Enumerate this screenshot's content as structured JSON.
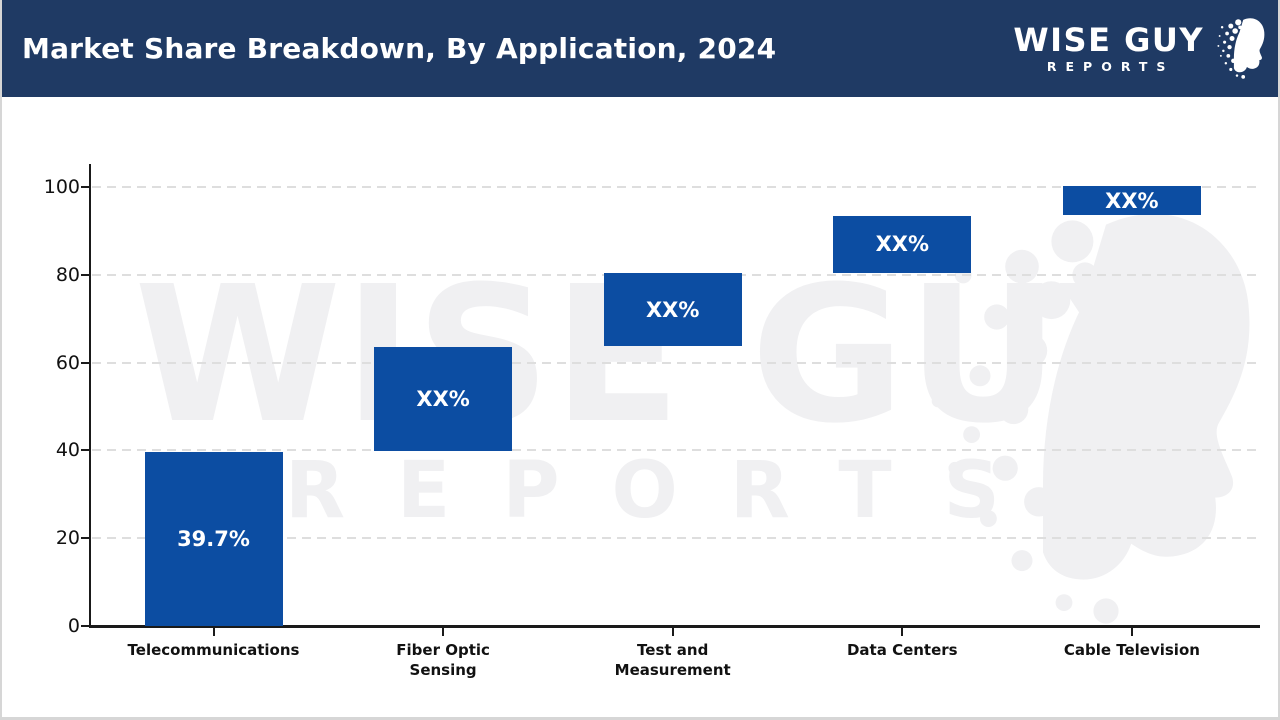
{
  "header": {
    "title": "Market Share Breakdown, By Application, 2024",
    "background_color": "#1F3A64",
    "logo": {
      "wordmark": "WISE GUY",
      "subtext": "REPORTS"
    }
  },
  "watermark": {
    "line1": "WISE GUY",
    "line2": "REPORTS"
  },
  "chart_data": {
    "type": "bar",
    "variant": "waterfall",
    "title": "Market Share Breakdown, By Application, 2024",
    "categories": [
      "Telecommunications",
      "Fiber Optic Sensing",
      "Test and Measurement",
      "Data Centers",
      "Cable Television"
    ],
    "category_label_lines": [
      [
        "Telecommunications"
      ],
      [
        "Fiber Optic",
        "Sensing"
      ],
      [
        "Test and",
        "Measurement"
      ],
      [
        "Data Centers"
      ],
      [
        "Cable Television"
      ]
    ],
    "segments": [
      {
        "category": "Telecommunications",
        "start": 0,
        "end": 39.7,
        "label": "39.7%"
      },
      {
        "category": "Fiber Optic Sensing",
        "start": 39.9,
        "end": 63.6,
        "label": "XX%"
      },
      {
        "category": "Test and Measurement",
        "start": 63.7,
        "end": 80.3,
        "label": "XX%"
      },
      {
        "category": "Data Centers",
        "start": 80.5,
        "end": 93.3,
        "label": "XX%"
      },
      {
        "category": "Cable Television",
        "start": 93.5,
        "end": 100.2,
        "label": "XX%"
      }
    ],
    "xlabel": "",
    "ylabel": "",
    "ylim": [
      0,
      105
    ],
    "yticks": [
      0,
      20,
      40,
      60,
      80,
      100
    ],
    "grid": "horizontal-dashed",
    "legend": "none",
    "bar_color": "#0C4DA2",
    "bar_label_color": "#FFFFFF"
  }
}
